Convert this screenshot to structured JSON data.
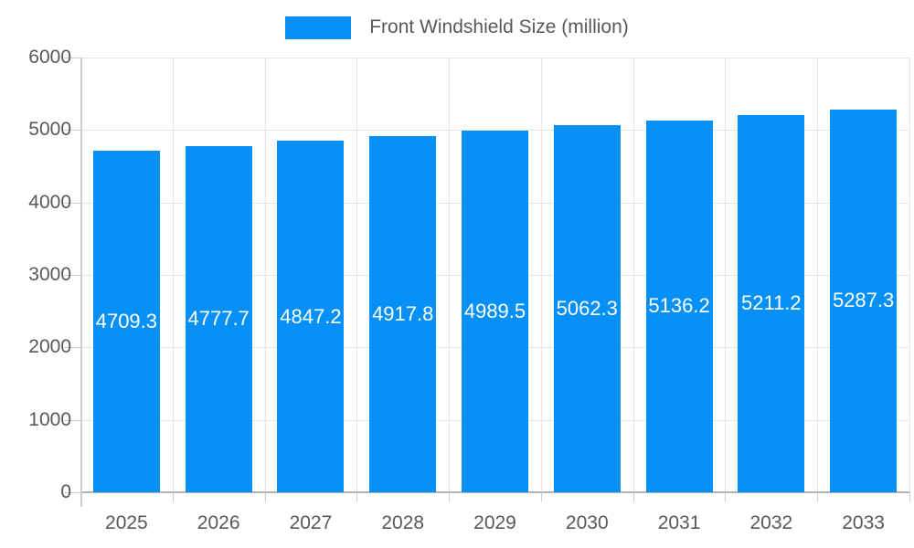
{
  "chart_data": {
    "type": "bar",
    "title": "Front Windshield Size (million)",
    "legend": {
      "position": "top",
      "label": "Front Windshield Size (million)"
    },
    "categories": [
      "2025",
      "2026",
      "2027",
      "2028",
      "2029",
      "2030",
      "2031",
      "2032",
      "2033"
    ],
    "series": [
      {
        "name": "Front Windshield Size (million)",
        "values": [
          4709.3,
          4777.7,
          4847.2,
          4917.8,
          4989.5,
          5062.3,
          5136.2,
          5211.2,
          5287.3
        ],
        "value_labels": [
          "4709.3",
          "4777.7",
          "4847.2",
          "4917.8",
          "4989.5",
          "5062.3",
          "5136.2",
          "5211.2",
          "5287.3"
        ]
      }
    ],
    "xlabel": "",
    "ylabel": "",
    "ylim": [
      0,
      6000
    ],
    "y_ticks": [
      0,
      1000,
      2000,
      3000,
      4000,
      5000,
      6000
    ],
    "y_tick_labels": [
      "0",
      "1000",
      "2000",
      "3000",
      "4000",
      "5000",
      "6000"
    ],
    "grid": true,
    "colors": {
      "bar": "#0590F8",
      "bar_label": "#ffffff",
      "axis_text": "#595959",
      "gridline": "#e6e6e6",
      "axis_line": "#cccccc",
      "baseline": "#b3b3b3",
      "background": "#ffffff"
    }
  }
}
